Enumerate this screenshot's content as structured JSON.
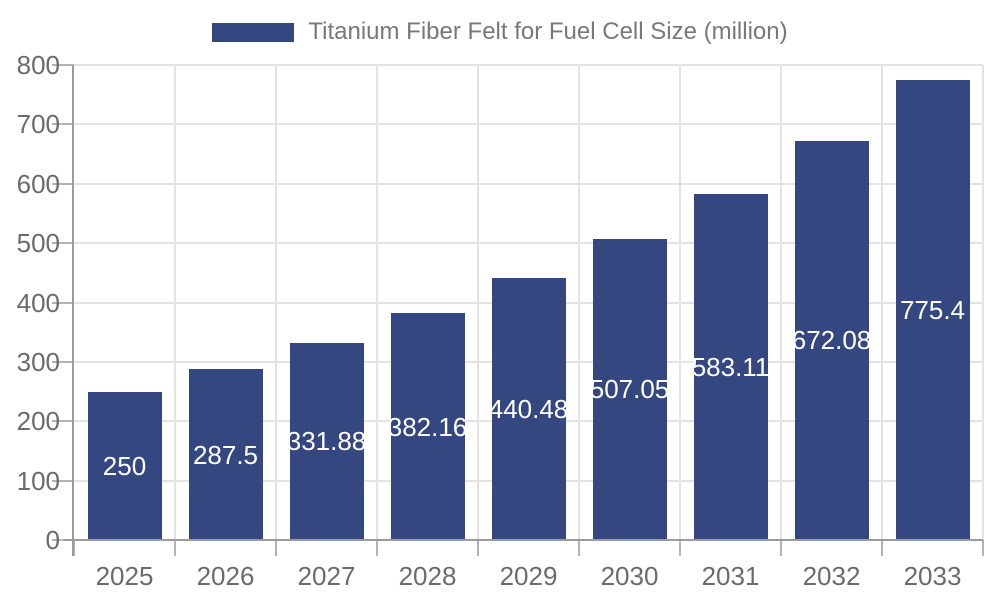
{
  "legend": {
    "label": "Titanium Fiber Felt for Fuel Cell Size (million)"
  },
  "chart_data": {
    "type": "bar",
    "title": "Titanium Fiber Felt for Fuel Cell Size (million)",
    "categories": [
      "2025",
      "2026",
      "2027",
      "2028",
      "2029",
      "2030",
      "2031",
      "2032",
      "2033"
    ],
    "values": [
      250,
      287.5,
      331.88,
      382.16,
      440.48,
      507.05,
      583.11,
      672.08,
      775.4
    ],
    "value_labels": [
      "250",
      "287.5",
      "331.88",
      "382.16",
      "440.48",
      "507.05",
      "583.11",
      "672.08",
      "775.4"
    ],
    "xlabel": "",
    "ylabel": "",
    "ylim": [
      0,
      800
    ],
    "ytick_step": 100,
    "ytick_labels": [
      "0",
      "100",
      "200",
      "300",
      "400",
      "500",
      "600",
      "700",
      "800"
    ],
    "grid": true,
    "legend_position": "top",
    "colors": {
      "bar": "#354780",
      "value_label": "#ffffff",
      "axis_label": "#6b6b6b",
      "legend_text": "#77787b",
      "gridline": "#e3e3e3",
      "tick": "#b3b3b3",
      "axis_line": "#9b9b9b",
      "background": "#ffffff"
    }
  }
}
